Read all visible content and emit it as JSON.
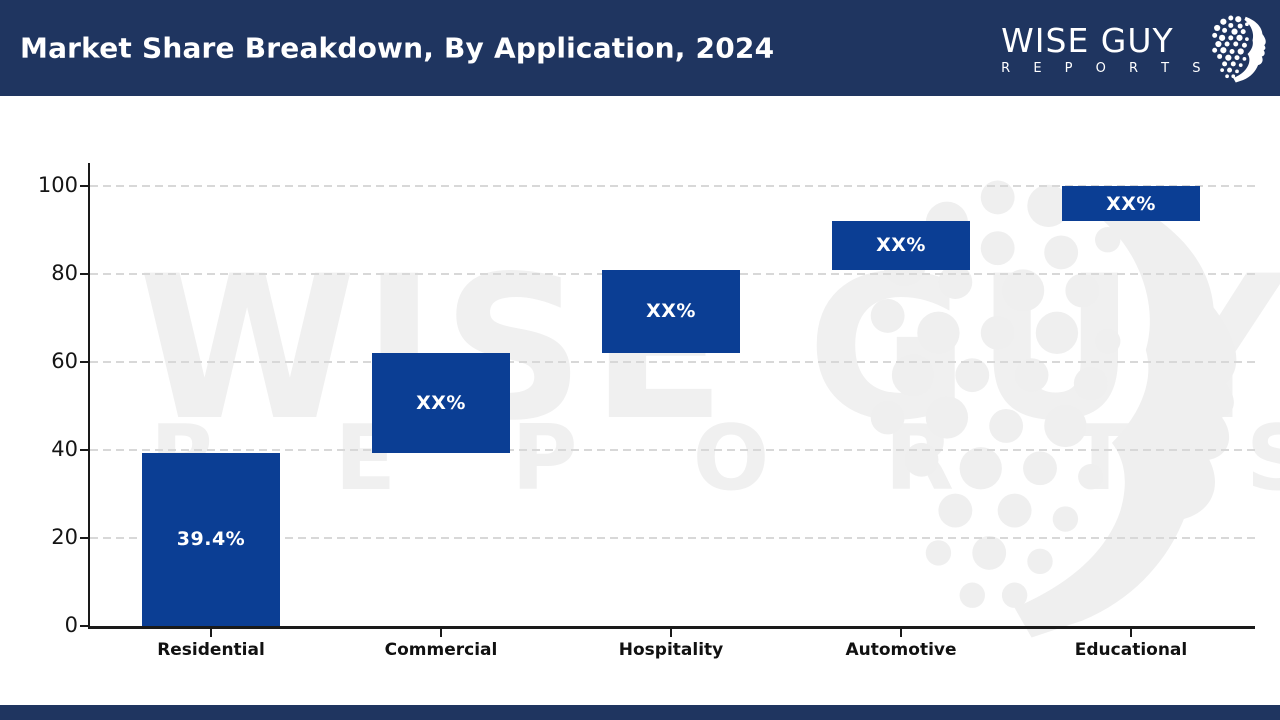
{
  "header": {
    "title": "Market Share Breakdown, By Application, 2024",
    "logo": {
      "wordmark": "WISE GUY",
      "subtext": "R E P O R T S",
      "icon": "dotted-head-profile"
    }
  },
  "watermark": {
    "wordmark": "WISE GUY",
    "subtext": "R E P O R T S",
    "icon": "dotted-head-profile"
  },
  "colors": {
    "header_bg": "#1f3560",
    "footer_bg": "#1f3560",
    "bar": "#0b3e94",
    "bar_label": "#ffffff",
    "gridline": "#d8d8d8",
    "axis": "#1a1a1a",
    "watermark": "#f0f0f0",
    "background": "#ffffff"
  },
  "chart_data": {
    "type": "bar",
    "subtype": "waterfall",
    "title": "Market Share Breakdown, By Application, 2024",
    "categories": [
      "Residential",
      "Commercial",
      "Hospitality",
      "Automotive",
      "Educational"
    ],
    "series": [
      {
        "name": "Market share (%)",
        "segments": [
          {
            "category": "Residential",
            "start": 0,
            "end": 39.4,
            "label": "39.4%"
          },
          {
            "category": "Commercial",
            "start": 39.4,
            "end": 62,
            "label": "XX%"
          },
          {
            "category": "Hospitality",
            "start": 62,
            "end": 81,
            "label": "XX%"
          },
          {
            "category": "Automotive",
            "start": 81,
            "end": 92,
            "label": "XX%"
          },
          {
            "category": "Educational",
            "start": 92,
            "end": 100,
            "label": "XX%"
          }
        ]
      }
    ],
    "xlabel": "",
    "ylabel": "",
    "ylim": [
      0,
      100
    ],
    "yticks": [
      0,
      20,
      40,
      60,
      80,
      100
    ],
    "grid": "horizontal-dashed",
    "legend": "none"
  }
}
